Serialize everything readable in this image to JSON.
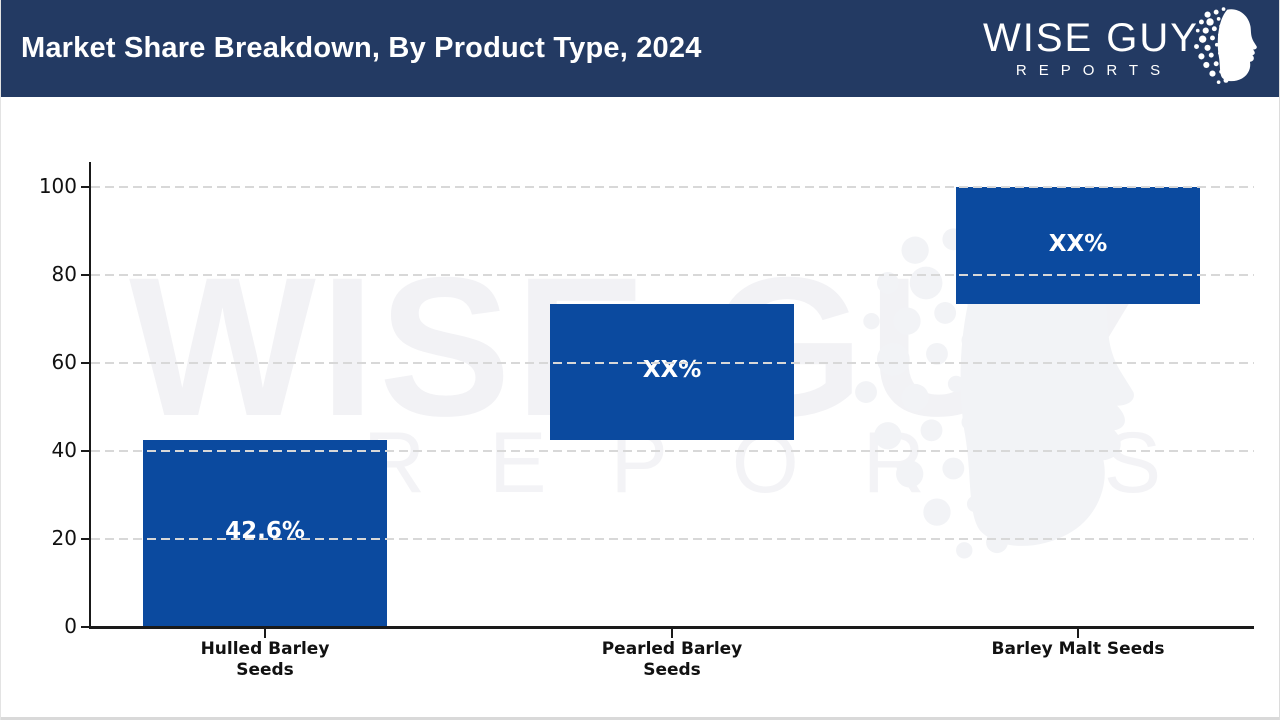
{
  "header": {
    "title": "Market Share Breakdown, By Product Type, 2024",
    "logo": {
      "line1": "WISE GUY",
      "line2": "REPORTS"
    }
  },
  "watermark": {
    "line1": "WISE GUY",
    "line2": "REPORTS"
  },
  "colors": {
    "header_bg": "#233a63",
    "bar": "#0b4a9f",
    "grid": "#d8d8d8",
    "axis": "#1a1a1a",
    "bar_label": "#ffffff",
    "watermark": "#f2f2f5"
  },
  "chart_data": {
    "type": "bar",
    "subtype": "floating-breakdown-bars",
    "title": "Market Share Breakdown, By Product Type, 2024",
    "categories": [
      "Hulled Barley Seeds",
      "Pearled Barley Seeds",
      "Barley Malt Seeds"
    ],
    "segments": [
      {
        "category_lines": [
          "Hulled Barley",
          "Seeds"
        ],
        "base": 0,
        "top": 42.6,
        "label": "42.6%"
      },
      {
        "category_lines": [
          "Pearled Barley",
          "Seeds"
        ],
        "base": 42.6,
        "top": 73.3,
        "label": "XX%"
      },
      {
        "category_lines": [
          "Barley Malt Seeds"
        ],
        "base": 73.3,
        "top": 100,
        "label": "XX%"
      }
    ],
    "ylim": [
      0,
      100
    ],
    "yticks": [
      0,
      20,
      40,
      60,
      80,
      100
    ],
    "grid": "dashed-horizontal",
    "legend": "none"
  }
}
